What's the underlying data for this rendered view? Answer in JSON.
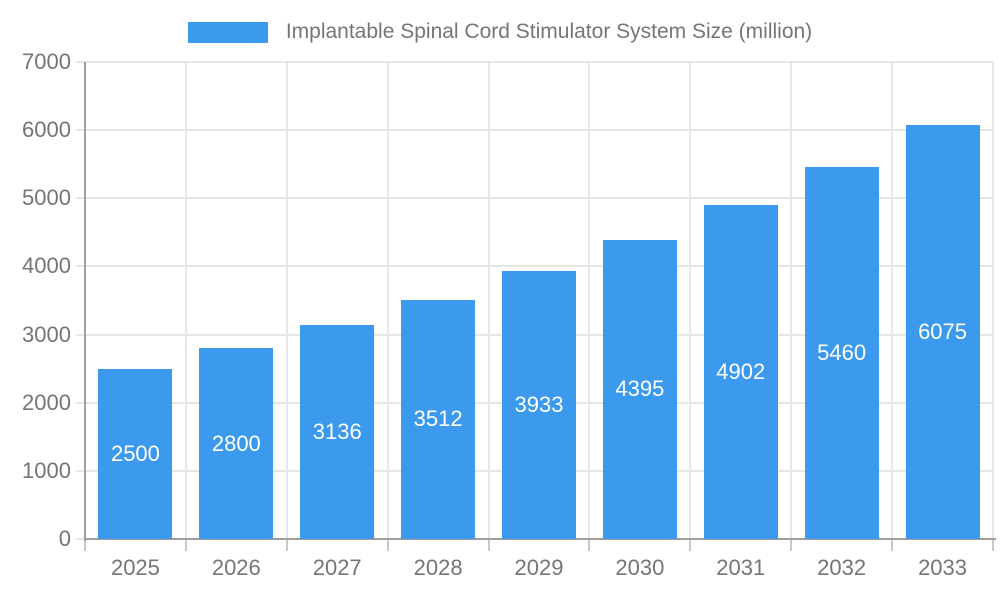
{
  "chart_data": {
    "type": "bar",
    "title": "Implantable Spinal Cord Stimulator System Size (million)",
    "categories": [
      "2025",
      "2026",
      "2027",
      "2028",
      "2029",
      "2030",
      "2031",
      "2032",
      "2033"
    ],
    "values": [
      2500,
      2800,
      3136,
      3512,
      3933,
      4395,
      4902,
      5460,
      6075
    ],
    "xlabel": "",
    "ylabel": "",
    "ylim": [
      0,
      7000
    ],
    "ytick_step": 1000,
    "ytick_labels": [
      "0",
      "1000",
      "2000",
      "3000",
      "4000",
      "5000",
      "6000",
      "7000"
    ],
    "grid": true,
    "legend_position": "top",
    "value_labels_shown": true,
    "colors": {
      "bar": "#3B99EE",
      "value_label": "#FFFFFF",
      "grid_line": "#E6E6E6",
      "axis_line": "#9E9E9E",
      "tick_mark": "#C9C9C9",
      "tick_label": "#757575",
      "legend_text": "#757575",
      "background": "#FFFFFF"
    }
  }
}
